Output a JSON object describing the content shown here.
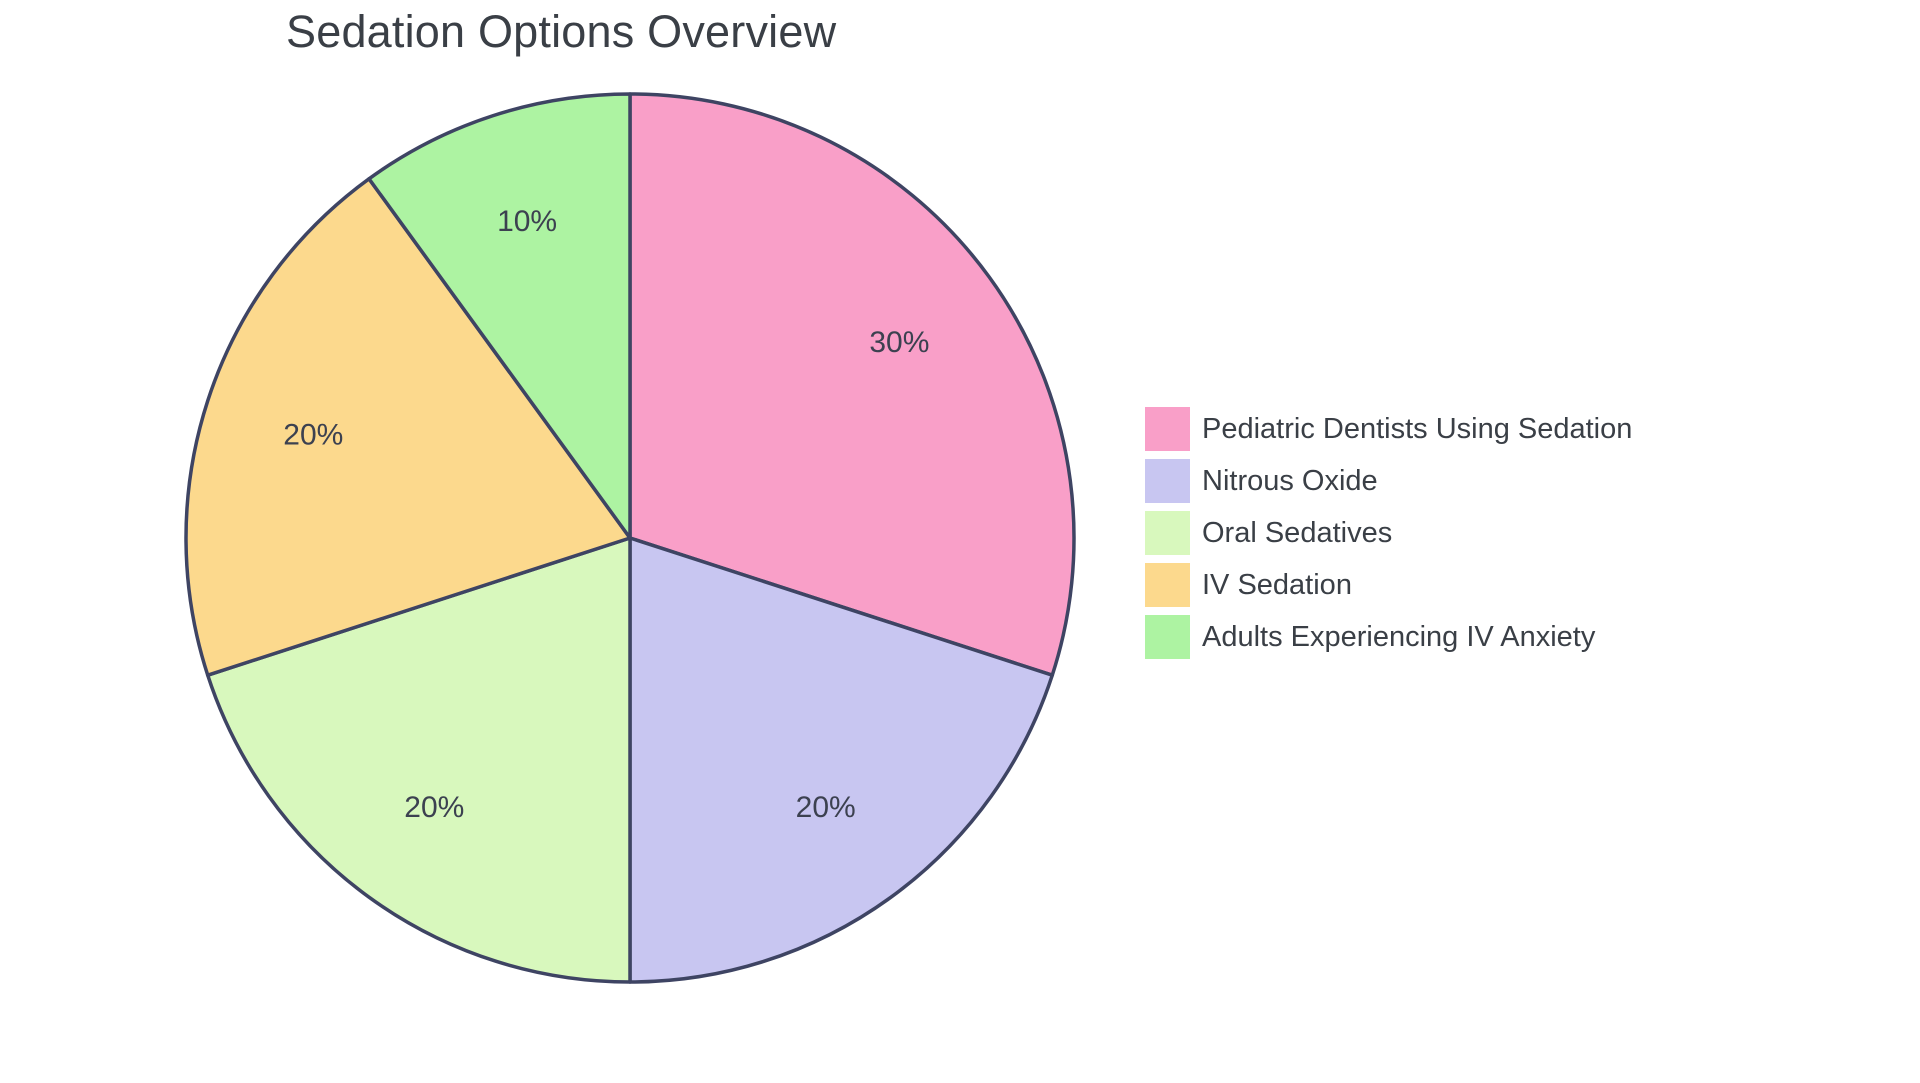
{
  "colors": {
    "background": "#ffffff",
    "stroke": "#3e4463",
    "title_text": "#3a3f46",
    "legend_text": "#3a3f46",
    "percent_text": "#3c4150"
  },
  "chart_data": {
    "type": "pie",
    "title": "Sedation Options Overview",
    "categories": [
      "Pediatric Dentists Using Sedation",
      "Nitrous Oxide",
      "Oral Sedatives",
      "IV Sedation",
      "Adults Experiencing IV Anxiety"
    ],
    "values": [
      30,
      20,
      20,
      20,
      10
    ],
    "unit": "%",
    "start_angle": "top",
    "direction": "clockwise",
    "legend_position": "right",
    "slices": [
      {
        "label": "Pediatric Dentists Using Sedation",
        "value": 30,
        "percent_label": "30%",
        "color": "#f99fc8"
      },
      {
        "label": "Nitrous Oxide",
        "value": 20,
        "percent_label": "20%",
        "color": "#c8c6f1"
      },
      {
        "label": "Oral Sedatives",
        "value": 20,
        "percent_label": "20%",
        "color": "#d8f8bd"
      },
      {
        "label": "IV Sedation",
        "value": 20,
        "percent_label": "20%",
        "color": "#fcd98d"
      },
      {
        "label": "Adults Experiencing IV Anxiety",
        "value": 10,
        "percent_label": "10%",
        "color": "#adf3a2"
      }
    ]
  }
}
